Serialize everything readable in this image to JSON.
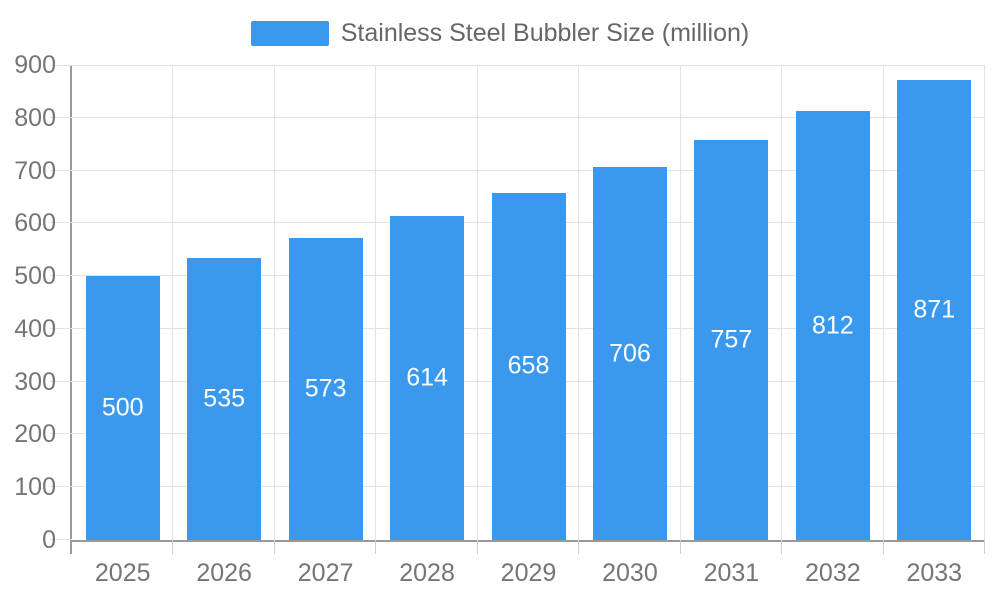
{
  "chart_data": {
    "type": "bar",
    "title": "",
    "legend": "Stainless Steel Bubbler Size (million)",
    "series": [
      {
        "name": "Stainless Steel Bubbler Size (million)",
        "values": [
          500,
          535,
          573,
          614,
          658,
          706,
          757,
          812,
          871
        ]
      }
    ],
    "categories": [
      "2025",
      "2026",
      "2027",
      "2028",
      "2029",
      "2030",
      "2031",
      "2032",
      "2033"
    ],
    "values": [
      500,
      535,
      573,
      614,
      658,
      706,
      757,
      812,
      871
    ],
    "value_labels": [
      "500",
      "535",
      "573",
      "614",
      "658",
      "706",
      "757",
      "812",
      "871"
    ],
    "xlabel": "",
    "ylabel": "",
    "ylim": [
      0,
      900
    ],
    "y_ticks": [
      0,
      100,
      200,
      300,
      400,
      500,
      600,
      700,
      800,
      900
    ],
    "grid": true,
    "legend_position": "top-center",
    "value_labels_inside_bars": true,
    "colors": {
      "bar": "#3A99EC",
      "value_label": "#FFFFFF",
      "axis_line": "#999999",
      "grid": "#E2E2E2",
      "tick": "#CFCFCF",
      "axis_text": "#757575",
      "legend_text": "#666666"
    }
  }
}
